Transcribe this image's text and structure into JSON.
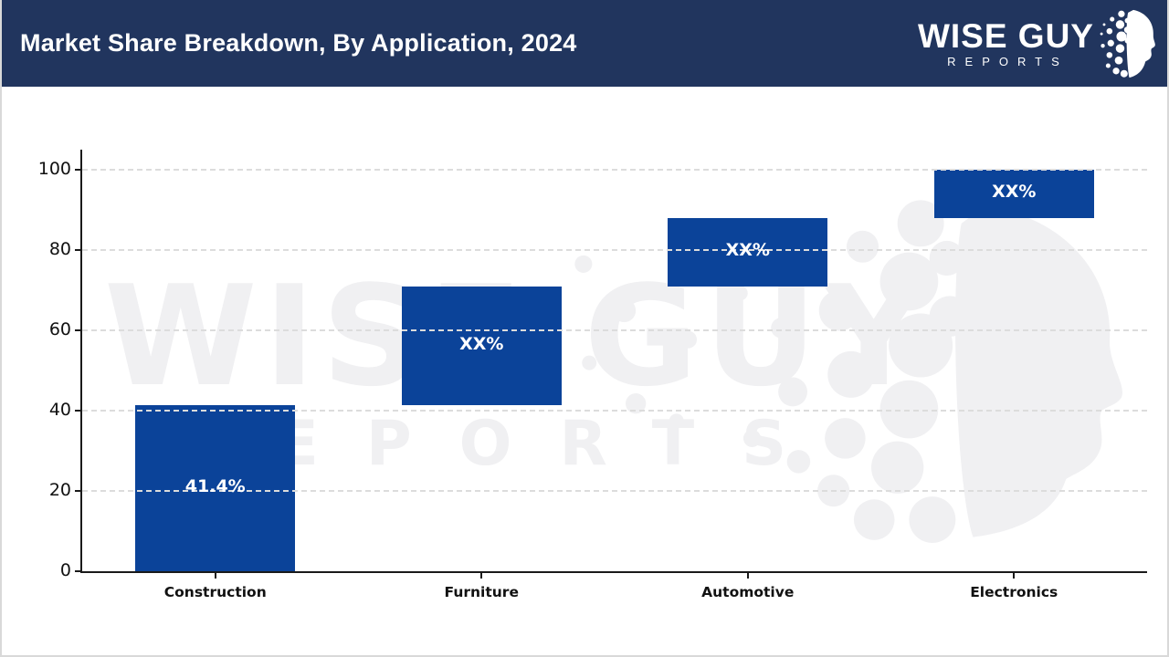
{
  "header": {
    "title": "Market Share Breakdown, By Application, 2024",
    "logo": {
      "line1": "WISE GUY",
      "line2": "REPORTS"
    }
  },
  "watermark": {
    "line1": "WISE GUY",
    "line2": "REPORTS"
  },
  "chart_data": {
    "type": "bar",
    "subtype": "waterfall",
    "title": "Market Share Breakdown, By Application, 2024",
    "categories": [
      "Construction",
      "Furniture",
      "Automotive",
      "Electronics"
    ],
    "segments": [
      {
        "category": "Construction",
        "start": 0,
        "end": 41.4,
        "value": 41.4,
        "label": "41.4%"
      },
      {
        "category": "Furniture",
        "start": 41.4,
        "end": 71,
        "value": 29.6,
        "label": "XX%"
      },
      {
        "category": "Automotive",
        "start": 71,
        "end": 88,
        "value": 17,
        "label": "XX%"
      },
      {
        "category": "Electronics",
        "start": 88,
        "end": 100,
        "value": 12,
        "label": "XX%"
      }
    ],
    "yticks": [
      0,
      20,
      40,
      60,
      80,
      100
    ],
    "ylim": [
      0,
      105
    ],
    "xlabel": "",
    "ylabel": "",
    "grid": "horizontal-dashed",
    "legend": "none",
    "bar_color": "#0b4399"
  },
  "colors": {
    "header_bg": "#21355e",
    "bar": "#0b4399",
    "grid": "#dcdcdc",
    "axis": "#1a1a1a",
    "watermark": "#f0f0f2",
    "page_border": "#d9d9d9",
    "title_text": "#ffffff"
  }
}
